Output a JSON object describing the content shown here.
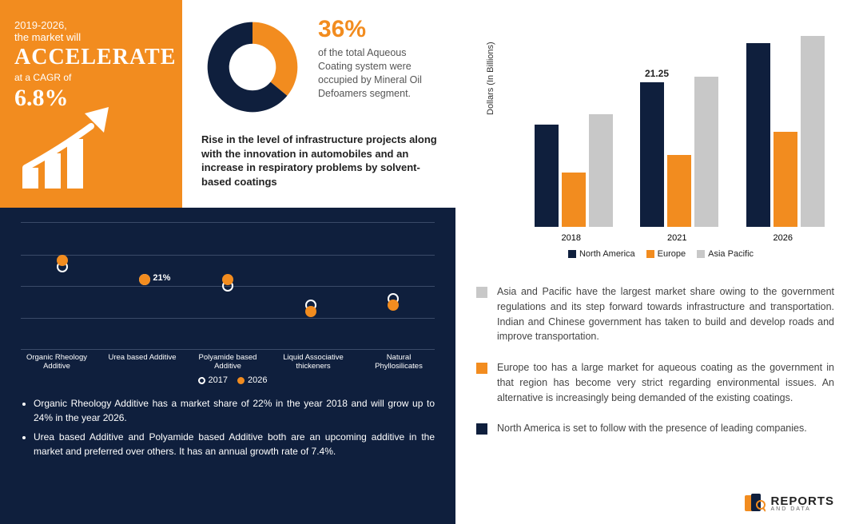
{
  "colors": {
    "orange": "#f28c1f",
    "navy": "#0f1f3d",
    "grey": "#c8c8c8",
    "gridNavy": "#3a4a68"
  },
  "orangeCard": {
    "dates": "2019-2026,",
    "line2": "the market will",
    "accel": "ACCELERATE",
    "cagrLabel": "at a CAGR of",
    "cagrVal": "6.8%"
  },
  "donut": {
    "pct": "36%",
    "desc": "of the total Aqueous Coating system were occupied by Mineral Oil Defoamers segment.",
    "pct_value": 36,
    "startAngle": -90,
    "innerRatio": 0.52,
    "sliceColors": {
      "orange": "#f28c1f",
      "navy": "#0f1f3d"
    }
  },
  "riseText": "Rise in the level of infrastructure projects along with the innovation in automobiles and an increase in respiratory problems by solvent-based coatings",
  "scatter": {
    "categories": [
      "Organic Rheology Additive",
      "Urea based Additive",
      "Polyamide based Additive",
      "Liquid Associative thickeners",
      "Natural Phyllosilicates"
    ],
    "series": [
      {
        "name": "2017",
        "style": "outline",
        "color": "#ffffff",
        "values": [
          23,
          21,
          20,
          17,
          18
        ]
      },
      {
        "name": "2026",
        "style": "solid",
        "color": "#f28c1f",
        "values": [
          24,
          21,
          21,
          16,
          17
        ]
      }
    ],
    "ylim": [
      10,
      30
    ],
    "gridSteps": 4,
    "labelPoint": {
      "cat": 1,
      "text": "21%"
    }
  },
  "bullets": [
    "Organic Rheology Additive has a market share of 22% in the year 2018 and will grow up to 24% in the year 2026.",
    "Urea based Additive and Polyamide based Additive both are an upcoming additive in the market and preferred over others. It has an annual growth rate of 7.4%."
  ],
  "barChart": {
    "ylabel": "Dollars (In Billions)",
    "ylim": [
      0,
      30
    ],
    "years": [
      "2018",
      "2021",
      "2026"
    ],
    "series": [
      {
        "name": "North America",
        "color": "#0f1f3d",
        "values": [
          15,
          21.25,
          27
        ]
      },
      {
        "name": "Europe",
        "color": "#f28c1f",
        "values": [
          8,
          10.5,
          14
        ]
      },
      {
        "name": "Asia Pacific",
        "color": "#c8c8c8",
        "values": [
          16.5,
          22,
          28
        ]
      }
    ],
    "valueLabel": {
      "year": "2021",
      "text": "21.25"
    }
  },
  "regions": [
    {
      "color": "#c8c8c8",
      "text": "Asia and Pacific have the largest market share owing to the government regulations and its step forward towards infrastructure and transportation. Indian and Chinese government has taken to build and develop roads and improve transportation."
    },
    {
      "color": "#f28c1f",
      "text": "Europe too has a large market for aqueous coating as the government in that region has become very strict regarding environmental issues. An alternative is increasingly being demanded of the existing coatings."
    },
    {
      "color": "#0f1f3d",
      "text": "North America is set to follow with the presence of leading companies."
    }
  ],
  "logo": {
    "text": "REPORTS",
    "sub": "AND DATA"
  }
}
